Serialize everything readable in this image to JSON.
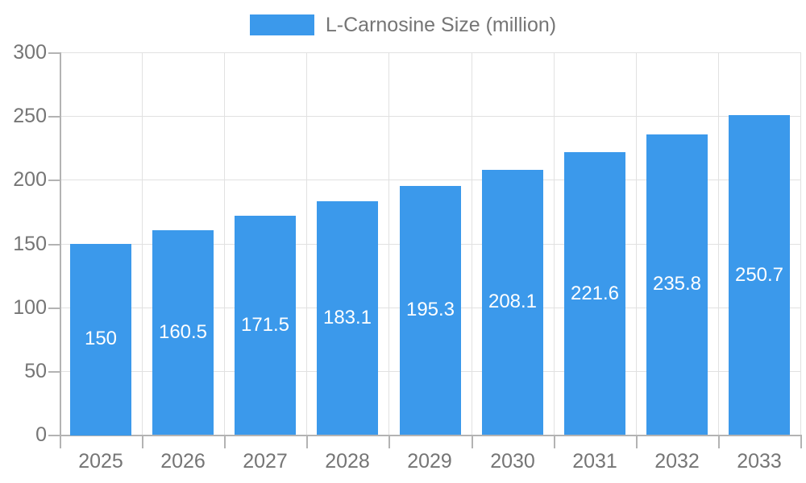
{
  "legend": {
    "label": "L-Carnosine Size (million)"
  },
  "colors": {
    "bar": "#3B99EB",
    "grid": "#E1E1E1",
    "axis": "#B3B3B3",
    "tick_label": "#757575",
    "legend_text": "#757575",
    "bar_label": "#FFFFFF",
    "background": "#FFFFFF"
  },
  "chart_data": {
    "type": "bar",
    "title": "",
    "legend": "L-Carnosine Size (million)",
    "legend_position": "top",
    "categories": [
      "2025",
      "2026",
      "2027",
      "2028",
      "2029",
      "2030",
      "2031",
      "2032",
      "2033"
    ],
    "values": [
      150,
      160.5,
      171.5,
      183.1,
      195.3,
      208.1,
      221.6,
      235.8,
      250.7
    ],
    "bar_labels": [
      "150",
      "160.5",
      "171.5",
      "183.1",
      "195.3",
      "208.1",
      "221.6",
      "235.8",
      "250.7"
    ],
    "xlabel": "",
    "ylabel": "",
    "ylim": [
      0,
      300
    ],
    "yticks": [
      0,
      50,
      100,
      150,
      200,
      250,
      300
    ],
    "grid": true
  }
}
